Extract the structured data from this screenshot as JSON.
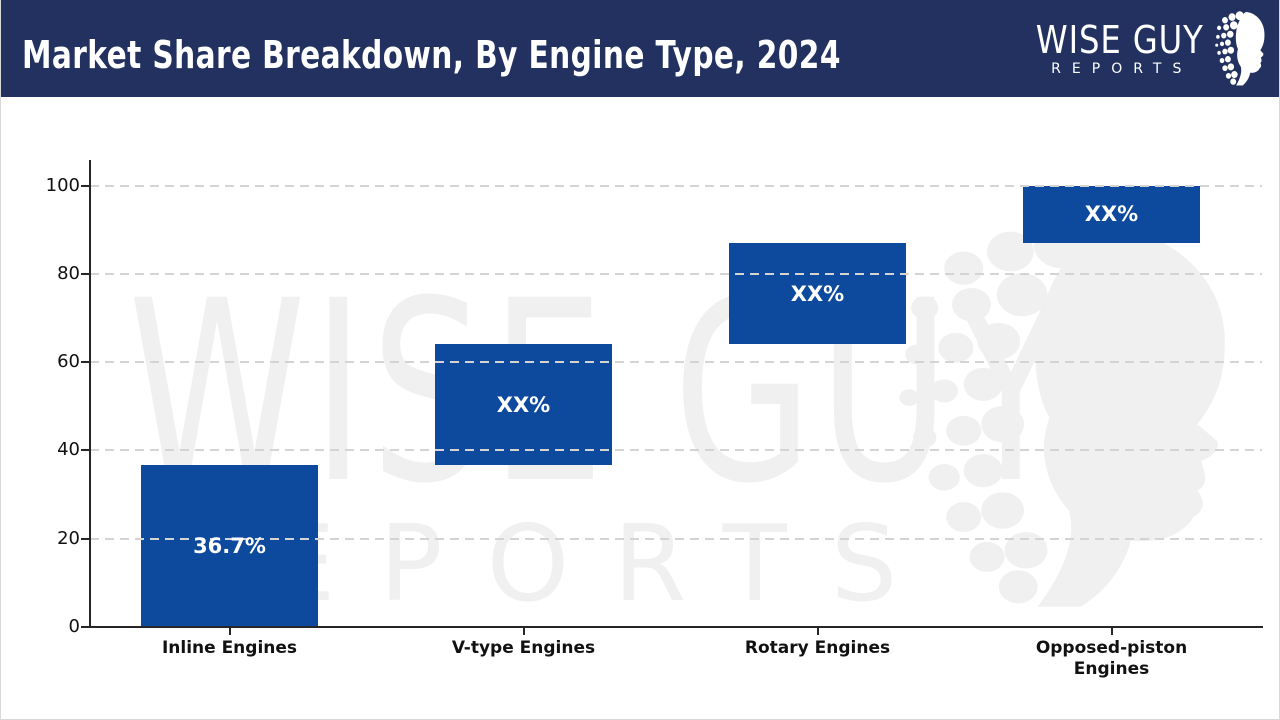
{
  "header": {
    "title": "Market Share Breakdown, By Engine Type, 2024",
    "logo": {
      "line1": "WISE GUY",
      "line2": "REPORTS"
    }
  },
  "watermark": {
    "line1": "WISE GUY",
    "line2": "REPORTS"
  },
  "chart_data": {
    "type": "bar",
    "subtype": "floating-segment-waterfall",
    "title": "Market Share Breakdown, By Engine Type, 2024",
    "categories": [
      "Inline Engines",
      "V-type Engines",
      "Rotary Engines",
      "Opposed-piston Engines"
    ],
    "bars": [
      {
        "category": "Inline Engines",
        "start": 0,
        "end": 36.7,
        "label": "36.7%"
      },
      {
        "category": "V-type Engines",
        "start": 36.7,
        "end": 64,
        "label": "XX%"
      },
      {
        "category": "Rotary Engines",
        "start": 64,
        "end": 87,
        "label": "XX%"
      },
      {
        "category": "Opposed-piston Engines",
        "start": 87,
        "end": 100,
        "label": "XX%"
      }
    ],
    "y_ticks": [
      0,
      20,
      40,
      60,
      80,
      100
    ],
    "ylim": [
      0,
      100
    ],
    "xlabel": "",
    "ylabel": "",
    "legend": "none",
    "grid": "horizontal dashed, drawn above bars",
    "colors": {
      "bar": "#0d4a9e",
      "header_background": "#22315f",
      "axis": "#262626",
      "gridline": "#d4d4d4",
      "bar_label_text": "#ffffff",
      "tick_label_text": "#111111",
      "watermark": "#f0f0f0"
    }
  }
}
